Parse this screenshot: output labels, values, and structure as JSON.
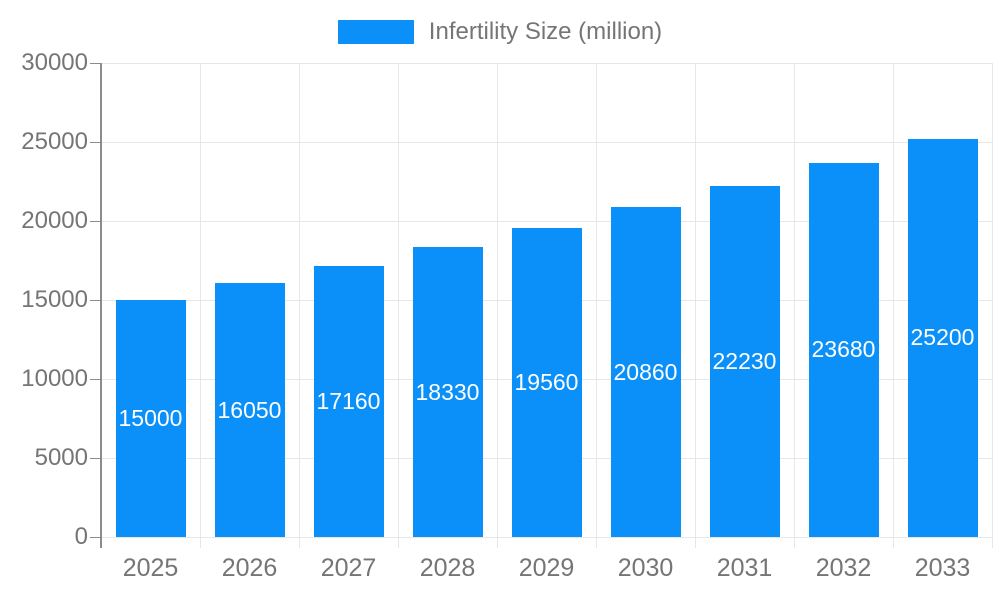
{
  "chart_data": {
    "type": "bar",
    "title": "Infertility Size (million)",
    "series": [
      {
        "name": "Infertility Size (million)",
        "values": [
          15000,
          16050,
          17160,
          18330,
          19560,
          20860,
          22230,
          23680,
          25200
        ]
      }
    ],
    "categories": [
      "2025",
      "2026",
      "2027",
      "2028",
      "2029",
      "2030",
      "2031",
      "2032",
      "2033"
    ],
    "xlabel": "",
    "ylabel": "",
    "ylim": [
      0,
      30000
    ],
    "yticks": [
      0,
      5000,
      10000,
      15000,
      20000,
      25000,
      30000
    ],
    "grid": true,
    "legend_position": "top-center",
    "bar_value_labels": "inside-middle-white"
  },
  "colors": {
    "bar": "#0a90f8",
    "grid": "#e7e7e7",
    "axis_spine": "#8c8c8c",
    "tick_text": "#757575",
    "bar_label_text": "#ffffff",
    "background": "#ffffff"
  }
}
